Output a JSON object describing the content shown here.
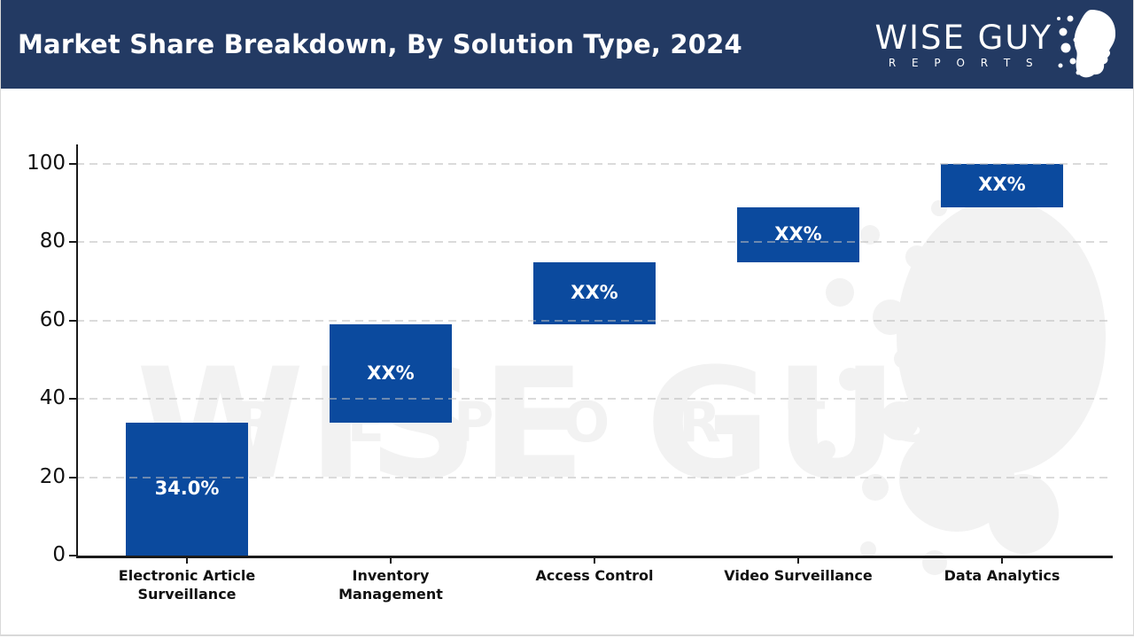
{
  "header": {
    "title": "Market Share Breakdown, By Solution Type, 2024",
    "logo": {
      "wordmark": "WISE GUY",
      "subtext": "R E P O R T S"
    }
  },
  "watermark": {
    "line1": "WISE GUY",
    "line2": "REPORTS"
  },
  "colors": {
    "header_bg": "#233a63",
    "bar": "#0b4a9e",
    "grid": "#bdbdbd",
    "watermark": "#f2f2f2"
  },
  "chart_data": {
    "type": "bar",
    "subtype": "waterfall",
    "title": "Market Share Breakdown, By Solution Type, 2024",
    "categories": [
      "Electronic Article\nSurveillance",
      "Inventory\nManagement",
      "Access Control",
      "Video Surveillance",
      "Data Analytics"
    ],
    "segments": [
      {
        "category": "Electronic Article Surveillance",
        "start": 0,
        "end": 34,
        "label": "34.0%"
      },
      {
        "category": "Inventory Management",
        "start": 34,
        "end": 59,
        "label": "XX%"
      },
      {
        "category": "Access Control",
        "start": 59,
        "end": 75,
        "label": "XX%"
      },
      {
        "category": "Video Surveillance",
        "start": 75,
        "end": 89,
        "label": "XX%"
      },
      {
        "category": "Data Analytics",
        "start": 89,
        "end": 100,
        "label": "XX%"
      }
    ],
    "yticks": [
      0,
      20,
      40,
      60,
      80,
      100
    ],
    "ylim": [
      0,
      105
    ],
    "grid": true,
    "grid_style": "dashed",
    "legend": false,
    "xlabel": "",
    "ylabel": ""
  }
}
